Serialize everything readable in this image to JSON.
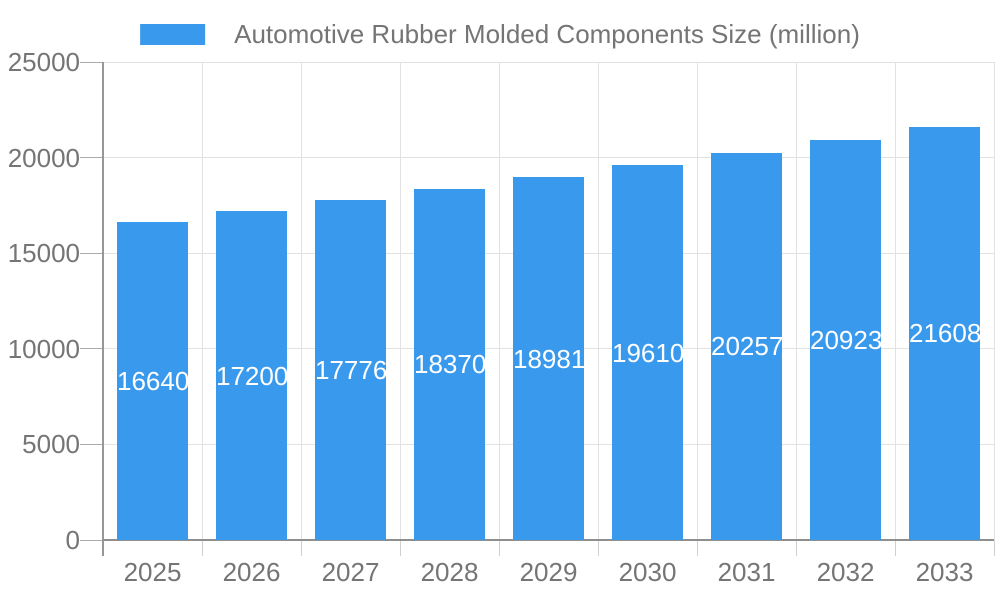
{
  "legend": {
    "label": "Automotive Rubber Molded Components Size (million)"
  },
  "colors": {
    "bar": "#3999EC",
    "value_label": "#FFFFFF",
    "axis_label": "#757575",
    "legend_text": "#757575",
    "grid_line": "#E2E2E2",
    "axis_line": "#8F8F8F",
    "background": "#FFFFFF"
  },
  "chart_data": {
    "type": "bar",
    "title": "Automotive Rubber Molded Components Size (million)",
    "categories": [
      "2025",
      "2026",
      "2027",
      "2028",
      "2029",
      "2030",
      "2031",
      "2032",
      "2033"
    ],
    "values": [
      16640,
      17200,
      17776,
      18370,
      18981,
      19610,
      20257,
      20923,
      21608
    ],
    "xlabel": "",
    "ylabel": "",
    "ylim": [
      0,
      25000
    ],
    "yticks": [
      0,
      5000,
      10000,
      15000,
      20000,
      25000
    ],
    "grid": true,
    "grid_vertical": true,
    "legend_position": "top-center",
    "value_labels": "inside-middle-white"
  }
}
